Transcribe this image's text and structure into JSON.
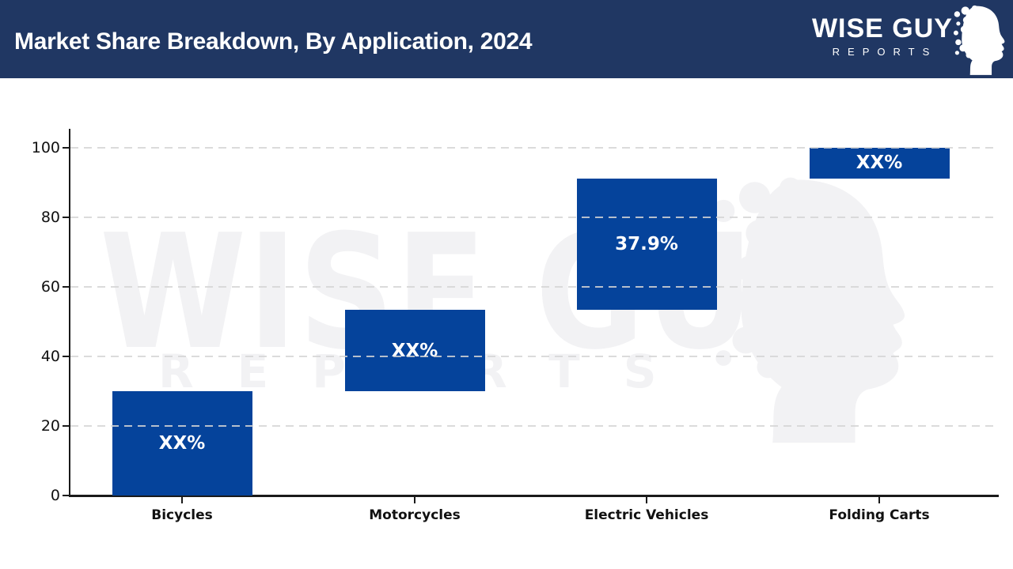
{
  "header": {
    "title": "Market Share Breakdown, By Application, 2024",
    "logo": {
      "line1": "WISE GUY",
      "line2": "REPORTS"
    }
  },
  "watermark": {
    "line1": "WISE GUY",
    "line2": "REPORTS"
  },
  "colors": {
    "header_bg": "#203763",
    "bar": "#05439b",
    "grid": "#d5d5d5",
    "axis": "#1a1a1a",
    "watermark": "#f2f2f4",
    "bar_label_text": "#ffffff"
  },
  "chart_data": {
    "type": "bar",
    "subtype": "waterfall",
    "title": "Market Share Breakdown, By Application, 2024",
    "xlabel": "",
    "ylabel": "",
    "categories": [
      "Bicycles",
      "Motorcycles",
      "Electric Vehicles",
      "Folding Carts"
    ],
    "segments": [
      {
        "category": "Bicycles",
        "start": 0,
        "end": 30,
        "label": "XX%"
      },
      {
        "category": "Motorcycles",
        "start": 30,
        "end": 53.3,
        "label": "XX%"
      },
      {
        "category": "Electric Vehicles",
        "start": 53.3,
        "end": 91.2,
        "label": "37.9%",
        "value": 37.9
      },
      {
        "category": "Folding Carts",
        "start": 91.2,
        "end": 100,
        "label": "XX%"
      }
    ],
    "yticks": [
      0,
      20,
      40,
      60,
      80,
      100
    ],
    "ylim": [
      0,
      100
    ],
    "grid": "horizontal-dashed",
    "legend": "none"
  }
}
